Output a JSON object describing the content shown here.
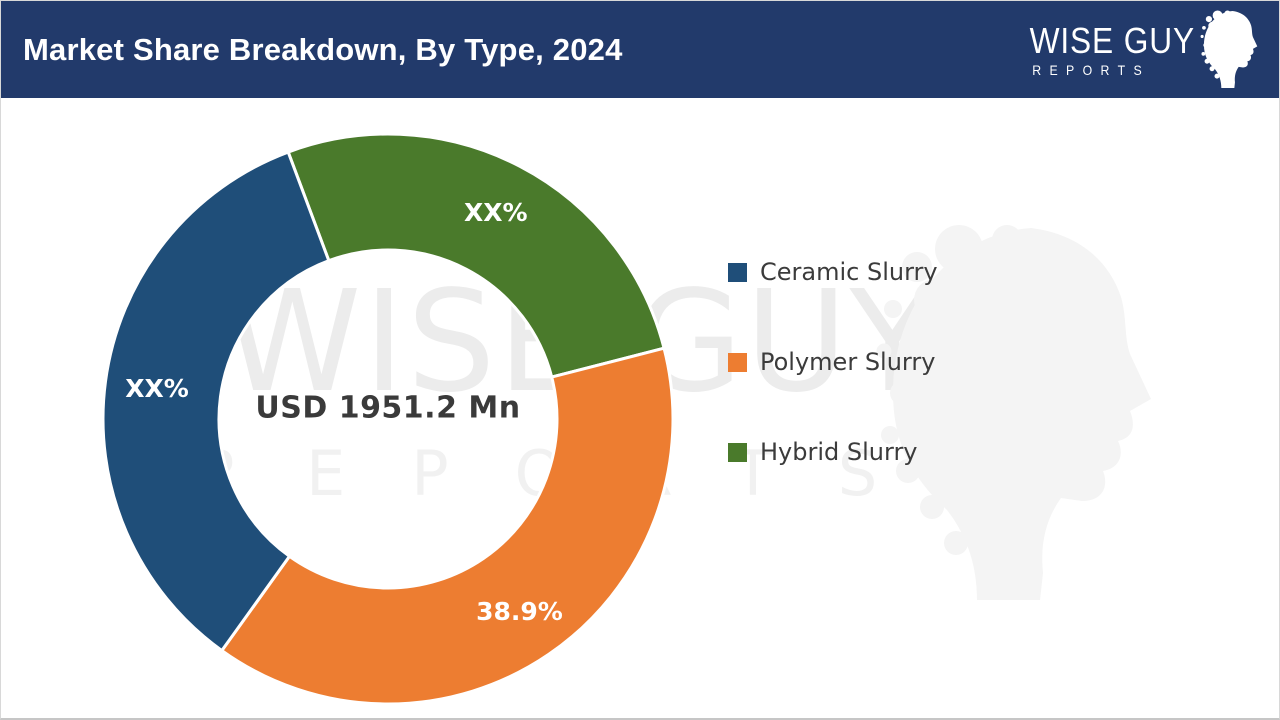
{
  "header": {
    "title": "Market Share Breakdown, By Type, 2024",
    "bg_color": "#223A6B",
    "logo": {
      "line1": "WISE GUY",
      "line2": "REPORTS"
    }
  },
  "watermark": {
    "line1": "WISE GUY",
    "line2": "REPORTS"
  },
  "chart_data": {
    "type": "pie",
    "subtype": "donut",
    "title": "Market Share Breakdown, By Type, 2024",
    "center_label": "USD 1951.2 Mn",
    "legend_position": "right",
    "start_angle_deg": 110.5,
    "direction": "clockwise",
    "draw_order": [
      2,
      1,
      0
    ],
    "inner_radius_px": 169,
    "outer_radius_px": 285,
    "label_radius_px": 233,
    "segments": [
      {
        "name": "Ceramic Slurry",
        "label": "XX%",
        "value_pct": 34.4,
        "color": "#1F4E79"
      },
      {
        "name": "Polymer Slurry",
        "label": "38.9%",
        "value_pct": 38.9,
        "color": "#ED7D31"
      },
      {
        "name": "Hybrid Slurry",
        "label": "XX%",
        "value_pct": 26.7,
        "color": "#4A7A2B"
      }
    ]
  }
}
